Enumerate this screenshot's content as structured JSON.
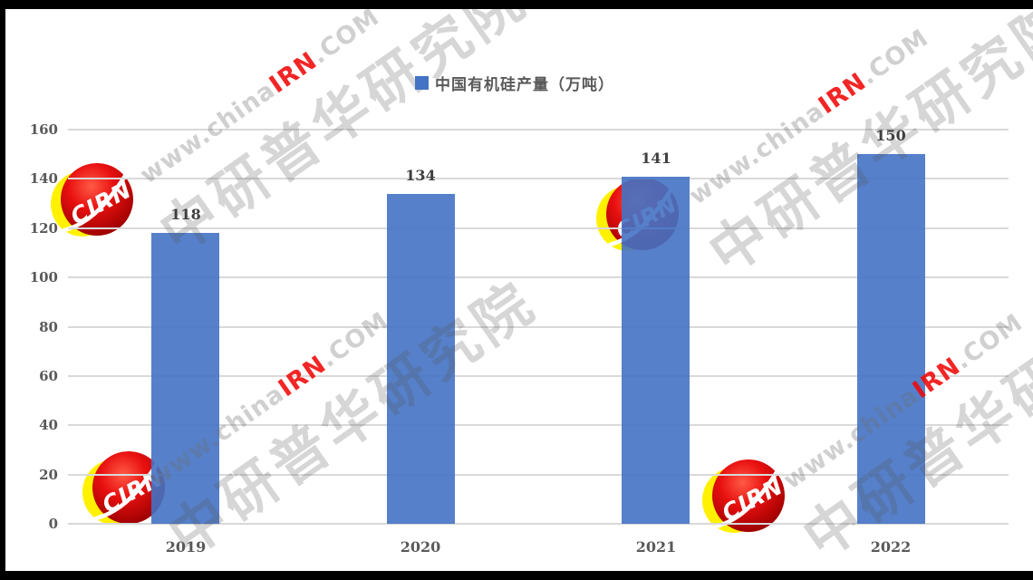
{
  "legend": {
    "label": "中国有机硅产量（万吨）",
    "marker_color": "#4472C4"
  },
  "chart_data": {
    "type": "bar",
    "title": "",
    "xlabel": "",
    "ylabel": "",
    "categories": [
      "2019",
      "2020",
      "2021",
      "2022"
    ],
    "values": [
      118,
      134,
      141,
      150
    ],
    "series_name": "中国有机硅产量（万吨）",
    "data_labels": [
      "118",
      "134",
      "141",
      "150"
    ],
    "ylim": [
      0,
      160
    ],
    "yticks": [
      0,
      20,
      40,
      60,
      80,
      100,
      120,
      140,
      160
    ],
    "grid": true,
    "legend_position": "top-center"
  },
  "watermarks": {
    "logo_text": "CIRN",
    "site_prefix": "www.china",
    "site_red": "IRN",
    "site_suffix": ".COM",
    "agency_text": "中研普华研究院"
  },
  "colors": {
    "bar": "#4472C4",
    "gridline": "#D9D9D9",
    "axis_label": "#595959",
    "value_label": "#3F3F3F",
    "legend_text": "#595959",
    "frame_black": "#000000",
    "stamp_red": "#F00808",
    "logo_red": "#E60000",
    "logo_yellow": "#FFF100"
  }
}
